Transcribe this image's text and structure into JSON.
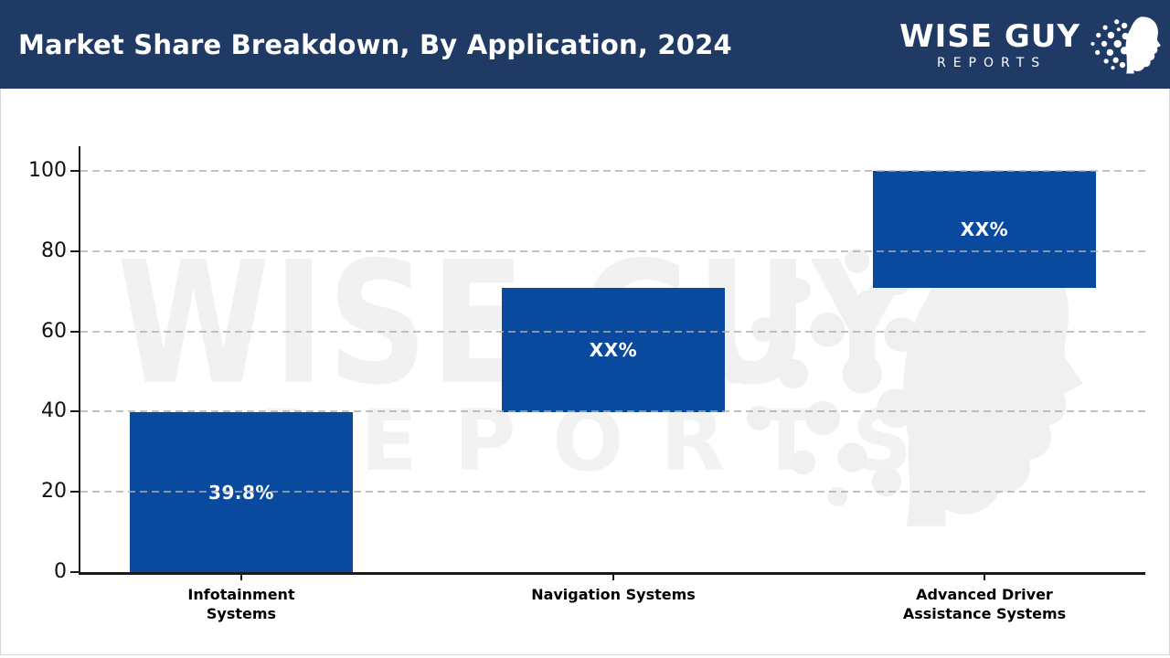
{
  "header": {
    "title": "Market Share Breakdown, By Application, 2024"
  },
  "logo": {
    "wordmark": "WISE GUY",
    "subtext": "REPORTS"
  },
  "watermark": {
    "line1": "WISE GUY",
    "line2": "REPORTS"
  },
  "colors": {
    "header_bg": "#203a66",
    "bar": "#0a4a9e",
    "axis": "#1a1a1a",
    "grid": "#adadad",
    "bar_label": "#ffffff",
    "watermark": "#f1f1f1"
  },
  "chart_data": {
    "type": "bar",
    "subtype": "waterfall",
    "title": "Market Share Breakdown, By Application, 2024",
    "categories": [
      "Infotainment Systems",
      "Navigation Systems",
      "Advanced Driver Assistance Systems"
    ],
    "category_lines": [
      [
        "Infotainment",
        "Systems"
      ],
      [
        "Navigation Systems"
      ],
      [
        "Advanced Driver",
        "Assistance Systems"
      ]
    ],
    "segments": [
      {
        "category": "Infotainment Systems",
        "start": 0,
        "end": 39.8,
        "label": "39.8%"
      },
      {
        "category": "Navigation Systems",
        "start": 39.8,
        "end": 70.8,
        "label": "XX%"
      },
      {
        "category": "Advanced Driver Assistance Systems",
        "start": 70.8,
        "end": 100,
        "label": "XX%"
      }
    ],
    "y_ticks": [
      0,
      20,
      40,
      60,
      80,
      100
    ],
    "ylim": [
      0,
      100
    ],
    "xlabel": "",
    "ylabel": "",
    "grid": "horizontal dashed, drawn over bars",
    "legend": "none"
  }
}
